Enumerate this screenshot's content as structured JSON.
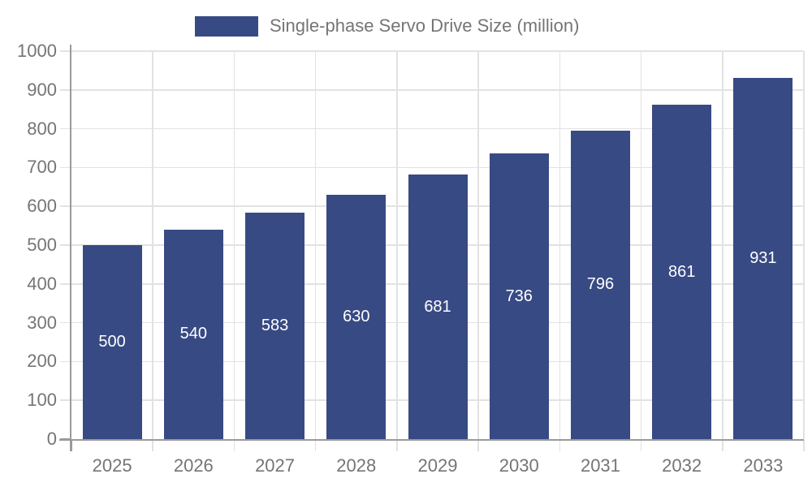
{
  "chart_data": {
    "type": "bar",
    "title": "Single-phase Servo Drive Size (million)",
    "legend": [
      "Single-phase Servo Drive Size (million)"
    ],
    "legend_position": "top-center",
    "categories": [
      "2025",
      "2026",
      "2027",
      "2028",
      "2029",
      "2030",
      "2031",
      "2032",
      "2033"
    ],
    "series": [
      {
        "name": "Single-phase Servo Drive Size (million)",
        "values": [
          500,
          540,
          583,
          630,
          681,
          736,
          796,
          861,
          931
        ]
      }
    ],
    "bar_value_labels": [
      "500",
      "540",
      "583",
      "630",
      "681",
      "736",
      "796",
      "861",
      "931"
    ],
    "xlabel": "",
    "ylabel": "",
    "ylim": [
      0,
      1000
    ],
    "y_ticks": [
      0,
      100,
      200,
      300,
      400,
      500,
      600,
      700,
      800,
      900,
      1000
    ],
    "grid": true,
    "colors": {
      "bar": "#384a84",
      "bar_label_text": "#ffffff",
      "axis_text": "#757575",
      "grid_line": "#e2e2e2",
      "axis_line": "#9a9a9a",
      "background": "#ffffff"
    }
  }
}
